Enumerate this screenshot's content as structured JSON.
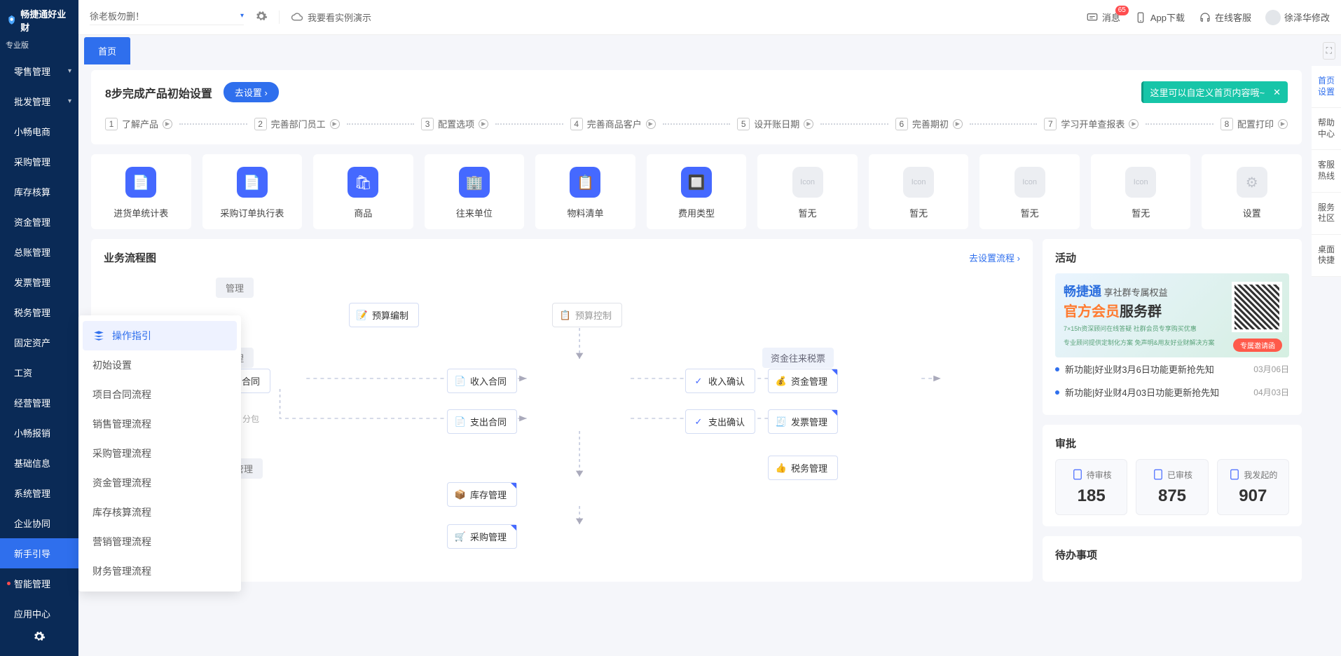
{
  "brand": {
    "name": "畅捷通好业财",
    "edition": "专业版"
  },
  "sidebar": {
    "items": [
      {
        "label": "零售管理",
        "arrow": true
      },
      {
        "label": "批发管理",
        "arrow": true
      },
      {
        "label": "小畅电商"
      },
      {
        "label": "采购管理"
      },
      {
        "label": "库存核算"
      },
      {
        "label": "资金管理"
      },
      {
        "label": "总账管理"
      },
      {
        "label": "发票管理"
      },
      {
        "label": "税务管理"
      },
      {
        "label": "固定资产"
      },
      {
        "label": "工资"
      },
      {
        "label": "经营管理"
      },
      {
        "label": "小畅报销"
      },
      {
        "label": "基础信息"
      },
      {
        "label": "系统管理"
      },
      {
        "label": "企业协同"
      },
      {
        "label": "新手引导",
        "active": true
      },
      {
        "label": "智能管理",
        "bullet": true
      },
      {
        "label": "应用中心"
      }
    ]
  },
  "topbar": {
    "org": "徐老板勿删！",
    "demo": "我要看实例演示",
    "msg": "消息",
    "msg_badge": "65",
    "app": "App下载",
    "service": "在线客服",
    "user": "徐泽华修改"
  },
  "tabs": {
    "home": "首页"
  },
  "siderail": [
    {
      "label": "首页设置",
      "blue": true
    },
    {
      "label": "帮助中心"
    },
    {
      "label": "客服热线"
    },
    {
      "label": "服务社区"
    },
    {
      "label": "桌面快捷"
    }
  ],
  "setup": {
    "title": "8步完成产品初始设置",
    "btn": "去设置",
    "tip": "这里可以自定义首页内容哦~",
    "steps": [
      "了解产品",
      "完善部门员工",
      "配置选项",
      "完善商品客户",
      "设开账日期",
      "完善期初",
      "学习开单查报表",
      "配置打印"
    ]
  },
  "tiles": [
    {
      "label": "进货单统计表",
      "icon": "doc",
      "blue": true
    },
    {
      "label": "采购订单执行表",
      "icon": "doc",
      "blue": true
    },
    {
      "label": "商品",
      "icon": "bag",
      "blue": true
    },
    {
      "label": "往来单位",
      "icon": "cols",
      "blue": true
    },
    {
      "label": "物料清单",
      "icon": "list",
      "blue": true
    },
    {
      "label": "费用类型",
      "icon": "grid",
      "blue": true
    },
    {
      "label": "暂无",
      "icon": "icon"
    },
    {
      "label": "暂无",
      "icon": "icon"
    },
    {
      "label": "暂无",
      "icon": "icon"
    },
    {
      "label": "暂无",
      "icon": "icon"
    },
    {
      "label": "设置",
      "icon": "gear"
    }
  ],
  "flow": {
    "title": "业务流程图",
    "link": "去设置流程",
    "section_budget": "管理",
    "section_income": "管理",
    "section_supply": "链管理",
    "col_label": "资金往来税票",
    "sub_label": "分包",
    "nodes": {
      "budget_make": "预算编制",
      "budget_ctrl": "预算控制",
      "proj_contract": "项目合同",
      "income_contract": "收入合同",
      "income_confirm": "收入确认",
      "expense_contract": "支出合同",
      "expense_confirm": "支出确认",
      "fund_mgmt": "资金管理",
      "invoice_mgmt": "发票管理",
      "tax_mgmt": "税务管理",
      "stock_mgmt": "库存管理",
      "purchase_mgmt": "采购管理"
    }
  },
  "activity": {
    "title": "活动",
    "promo_l1": "畅捷通",
    "promo_l1b": "享社群专属权益",
    "promo_l2a": "官方会员",
    "promo_l2b": "服务群",
    "promo_m1": "7×15h资深顾问在线答疑   社群会员专享购买优惠",
    "promo_m2": "专业顾问提供定制化方案   免声明&用友好业财解决方案",
    "promo_tag": "专属邀请函",
    "news": [
      {
        "txt": "新功能|好业财3月6日功能更新抢先知",
        "date": "03月06日"
      },
      {
        "txt": "新功能|好业财4月03日功能更新抢先知",
        "date": "04月03日"
      }
    ]
  },
  "approve": {
    "title": "审批",
    "boxes": [
      {
        "label": "待审核",
        "val": "185"
      },
      {
        "label": "已审核",
        "val": "875"
      },
      {
        "label": "我发起的",
        "val": "907"
      }
    ]
  },
  "todo": {
    "title": "待办事项"
  },
  "guide": {
    "items": [
      "操作指引",
      "初始设置",
      "项目合同流程",
      "销售管理流程",
      "采购管理流程",
      "资金管理流程",
      "库存核算流程",
      "营销管理流程",
      "财务管理流程"
    ]
  }
}
